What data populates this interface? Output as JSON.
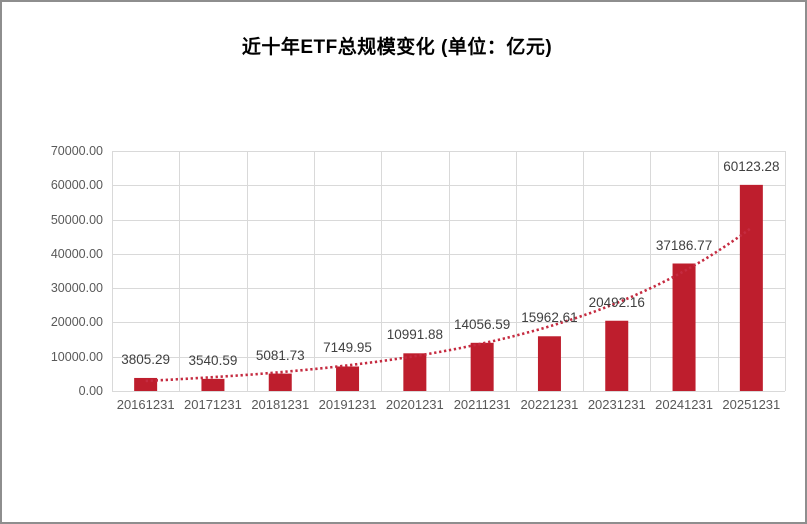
{
  "window": {
    "background": "#FFFFFF",
    "frame_border_color": "#8E8E8E"
  },
  "chart_data": {
    "type": "bar",
    "title": "近十年ETF总规模变化 (单位：亿元)",
    "categories": [
      "20161231",
      "20171231",
      "20181231",
      "20191231",
      "20201231",
      "20211231",
      "20221231",
      "20231231",
      "20241231",
      "20251231"
    ],
    "values": [
      3805.29,
      3540.59,
      5081.73,
      7149.95,
      10991.88,
      14056.59,
      15962.61,
      20492.16,
      37186.77,
      60123.28
    ],
    "value_labels": [
      "3805.29",
      "3540.59",
      "5081.73",
      "7149.95",
      "10991.88",
      "14056.59",
      "15962.61",
      "20492.16",
      "37186.77",
      "60123.28"
    ],
    "xlabel": "",
    "ylabel": "",
    "ylim": [
      0,
      70000
    ],
    "ytick_step": 10000,
    "ytick_labels": [
      "0.00",
      "10000.00",
      "20000.00",
      "30000.00",
      "40000.00",
      "50000.00",
      "60000.00",
      "70000.00"
    ],
    "grid": true,
    "legend": "none",
    "trendline": {
      "type": "exponential",
      "style": "dotted"
    },
    "colors": {
      "bar": "#BE1E2D",
      "trendline": "#C52B40",
      "grid": "#D9D9D9",
      "axis_text": "#595959",
      "data_label_text": "#404040",
      "title_text": "#000000"
    }
  }
}
